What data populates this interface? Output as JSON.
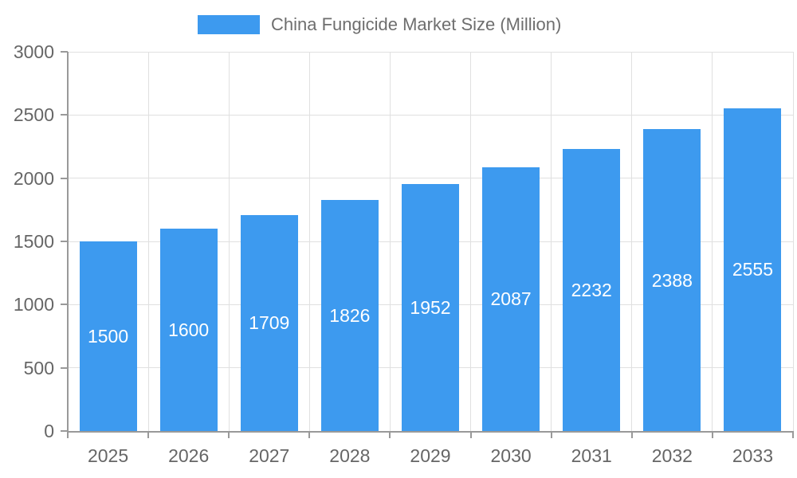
{
  "legend": {
    "label": "China Fungicide Market Size (Million)"
  },
  "colors": {
    "bar": "#3D9AEF",
    "grid_line": "#E0E0E0",
    "axis_line": "#999999",
    "tick_label": "#666666",
    "legend_text": "#6E6E6E",
    "bar_label": "#FFFFFF",
    "background": "#FFFFFF"
  },
  "chart_data": {
    "type": "bar",
    "title": "China Fungicide Market Size (Million)",
    "categories": [
      "2025",
      "2026",
      "2027",
      "2028",
      "2029",
      "2030",
      "2031",
      "2032",
      "2033"
    ],
    "values": [
      1500,
      1600,
      1709,
      1826,
      1952,
      2087,
      2232,
      2388,
      2555
    ],
    "xlabel": "",
    "ylabel": "",
    "ylim": [
      0,
      3000
    ],
    "ytick_step": 500,
    "grid": true,
    "legend_position": "top-center",
    "value_labels": "inside-center"
  }
}
